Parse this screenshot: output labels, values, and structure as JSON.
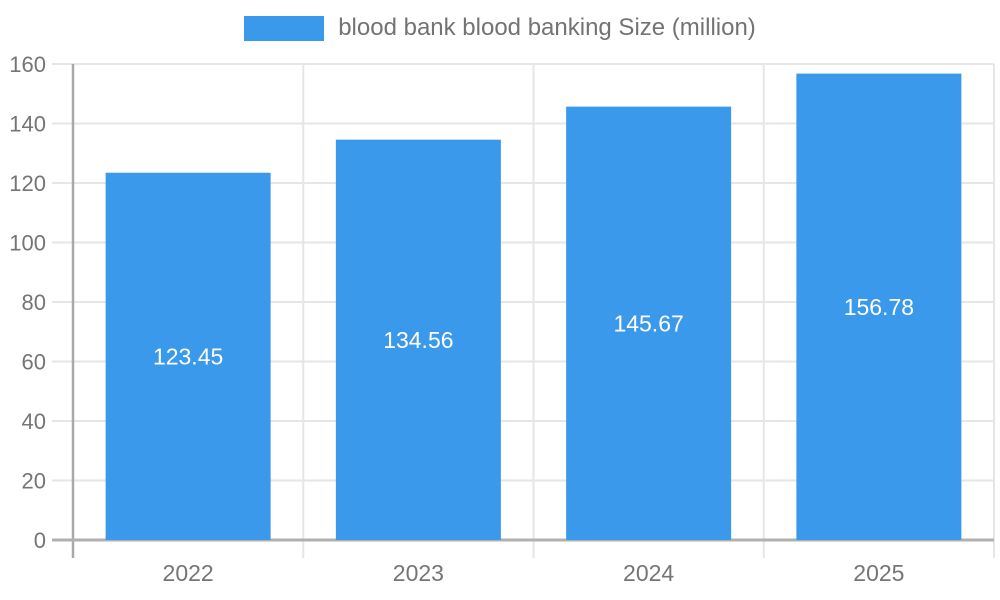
{
  "chart_data": {
    "type": "bar",
    "title": "",
    "categories": [
      "2022",
      "2023",
      "2024",
      "2025"
    ],
    "series": [
      {
        "name": "blood bank blood banking Size (million)",
        "values": [
          123.45,
          134.56,
          145.67,
          156.78
        ],
        "color": "#3B99EB"
      }
    ],
    "value_labels": [
      "123.45",
      "134.56",
      "145.67",
      "156.78"
    ],
    "xlabel": "",
    "ylabel": "",
    "ylim": [
      0,
      160
    ],
    "ytick_step": 20,
    "ytick_labels": [
      "0",
      "20",
      "40",
      "60",
      "80",
      "100",
      "120",
      "140",
      "160"
    ],
    "grid": true,
    "legend_position": "top",
    "colors": {
      "bar": "#3B99EB",
      "value_label": "#ffffff",
      "axis_text": "#757575",
      "grid_line": "#e6e6e6",
      "axis_line": "#a9a9a9",
      "baseline": "#b0b0b0",
      "background": "#ffffff",
      "legend_text": "#737373"
    }
  }
}
